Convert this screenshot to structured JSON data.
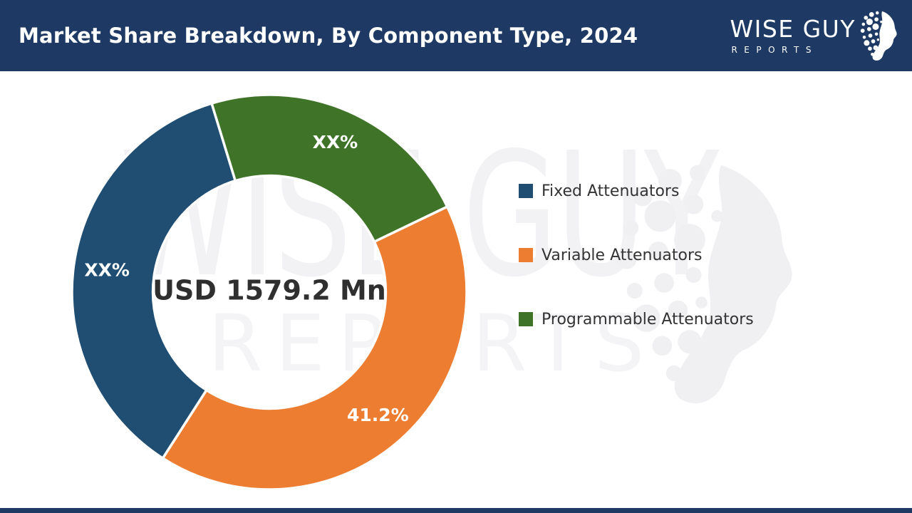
{
  "header": {
    "title": "Market Share Breakdown, By Component Type, 2024",
    "logo": {
      "wordmark": "WISE GUY",
      "subtitle": "REPORTS"
    }
  },
  "chart_data": {
    "type": "pie",
    "subtype": "donut",
    "title": "Market Share Breakdown, By Component Type, 2024",
    "center_label": "USD 1579.2 Mn",
    "legend_position": "right",
    "donut_hole_ratio": 0.59,
    "start_angle_deg": 107,
    "clockwise": true,
    "draw_order": [
      "Programmable Attenuators",
      "Variable Attenuators",
      "Fixed Attenuators"
    ],
    "slices": [
      {
        "label": "Fixed Attenuators",
        "display_value": "XX%",
        "value_pct_est": 36.2,
        "color": "#1F4E72"
      },
      {
        "label": "Variable Attenuators",
        "display_value": "41.2%",
        "value_pct_est": 41.2,
        "color": "#ED7D31"
      },
      {
        "label": "Programmable Attenuators",
        "display_value": "XX%",
        "value_pct_est": 22.6,
        "color": "#3F7428"
      }
    ]
  },
  "watermark": {
    "line1": "WISE GUY",
    "line2": "REPORTS"
  },
  "colors": {
    "header_bg": "#1E3A64",
    "footer_bg": "#1E3A64",
    "page_bg": "#FFFFFF",
    "title_text": "#FFFFFF",
    "center_text": "#2F2F2F",
    "legend_text": "#333333",
    "slice_label_text": "#FFFFFF",
    "slice_gap": "#FFFFFF",
    "watermark_text": "#F2F2F5",
    "watermark_head": "#F0F0F3"
  }
}
